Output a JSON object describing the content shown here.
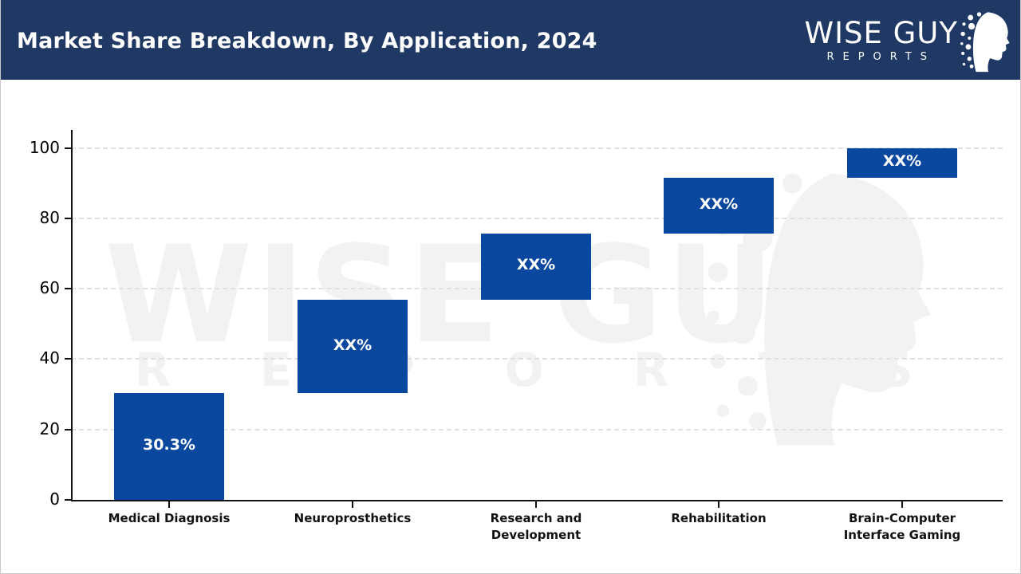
{
  "header": {
    "title": "Market Share Breakdown, By Application, 2024",
    "bg_color": "#1f3864",
    "logo": {
      "line1": "WISE GUY",
      "line2": "REPORTS"
    }
  },
  "watermark": {
    "line1": "WISE GUY",
    "line2": "R E P O R T S"
  },
  "chart_data": {
    "type": "bar",
    "subtype": "waterfall",
    "title": "Market Share Breakdown, By Application, 2024",
    "xlabel": "",
    "ylabel": "",
    "ylim": [
      0,
      105
    ],
    "yticks": [
      0,
      20,
      40,
      60,
      80,
      100
    ],
    "grid": "horizontal-dashed",
    "legend": "none",
    "bar_color": "#0a479e",
    "value_label_color": "#ffffff",
    "categories": [
      "Medical Diagnosis",
      "Neuroprosthetics",
      "Research and\nDevelopment",
      "Rehabilitation",
      "Brain-Computer\nInterface Gaming"
    ],
    "segments": [
      {
        "name": "Medical Diagnosis",
        "start": 0,
        "end": 30.3,
        "label": "30.3%"
      },
      {
        "name": "Neuroprosthetics",
        "start": 30.3,
        "end": 56.9,
        "label": "XX%"
      },
      {
        "name": "Research and Development",
        "start": 56.9,
        "end": 75.7,
        "label": "XX%"
      },
      {
        "name": "Rehabilitation",
        "start": 75.7,
        "end": 91.5,
        "label": "XX%"
      },
      {
        "name": "Brain-Computer Interface Gaming",
        "start": 91.5,
        "end": 100,
        "label": "XX%"
      }
    ]
  }
}
